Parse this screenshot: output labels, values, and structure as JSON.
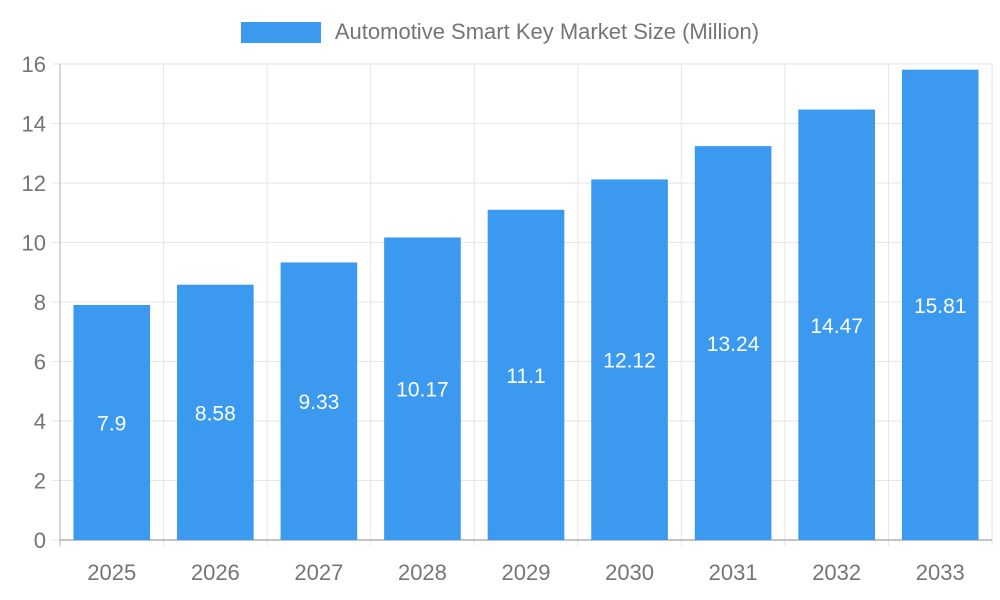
{
  "chart_data": {
    "type": "bar",
    "title": "Automotive Smart Key Market Size (Million)",
    "series": [
      {
        "name": "Automotive Smart Key Market Size (Million)",
        "values": [
          7.9,
          8.58,
          9.33,
          10.17,
          11.1,
          12.12,
          13.24,
          14.47,
          15.81
        ]
      }
    ],
    "categories": [
      "2025",
      "2026",
      "2027",
      "2028",
      "2029",
      "2030",
      "2031",
      "2032",
      "2033"
    ],
    "values": [
      7.9,
      8.58,
      9.33,
      10.17,
      11.1,
      12.12,
      13.24,
      14.47,
      15.81
    ],
    "bar_labels": [
      "7.9",
      "8.58",
      "9.33",
      "10.17",
      "11.1",
      "12.12",
      "13.24",
      "14.47",
      "15.81"
    ],
    "xlabel": "",
    "ylabel": "",
    "ylim": [
      0,
      16
    ],
    "yticks": [
      0,
      2,
      4,
      6,
      8,
      10,
      12,
      14,
      16
    ],
    "grid": true,
    "legend_position": "top-center",
    "colors": {
      "bar": "#3b99f0",
      "bar_label": "#ffffff",
      "axis_label": "#757575",
      "grid_line": "#e6e6e6",
      "axis_line": "#b0b0b0"
    }
  }
}
